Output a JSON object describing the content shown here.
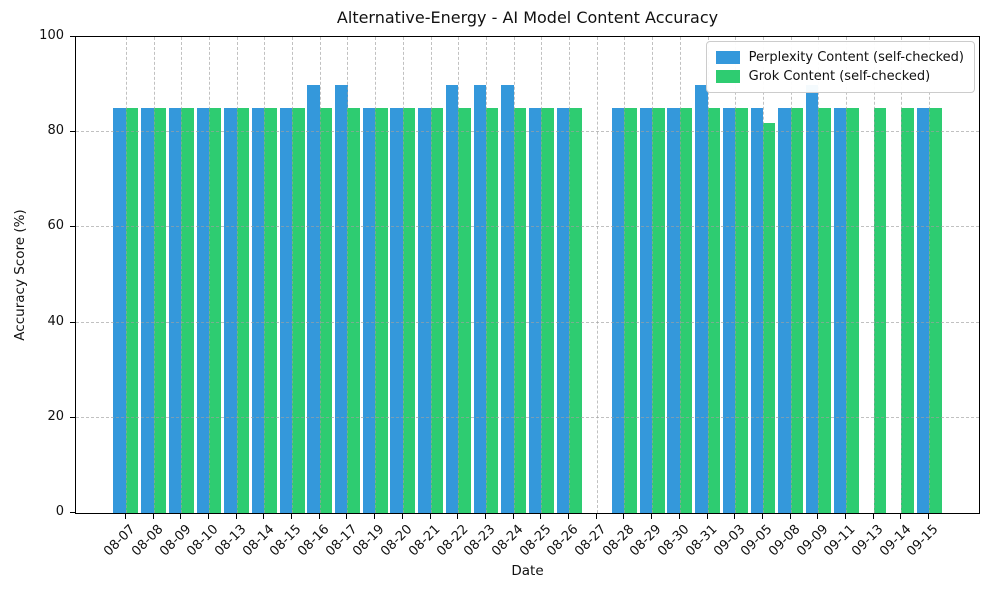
{
  "chart_data": {
    "type": "bar",
    "title": "Alternative-Energy - AI Model Content Accuracy",
    "xlabel": "Date",
    "ylabel": "Accuracy Score (%)",
    "ylim": [
      0,
      100
    ],
    "yticks": [
      0,
      20,
      40,
      60,
      80,
      100
    ],
    "grid": true,
    "grid_style": "dashed",
    "legend_position": "upper right",
    "categories": [
      "08-07",
      "08-08",
      "08-09",
      "08-10",
      "08-13",
      "08-14",
      "08-15",
      "08-16",
      "08-17",
      "08-19",
      "08-20",
      "08-21",
      "08-22",
      "08-23",
      "08-24",
      "08-25",
      "08-26",
      "08-27",
      "08-28",
      "08-29",
      "08-30",
      "08-31",
      "09-03",
      "09-05",
      "09-08",
      "09-09",
      "09-11",
      "09-13",
      "09-14",
      "09-15"
    ],
    "series": [
      {
        "name": "Perplexity Content (self-checked)",
        "color": "#3498db",
        "values": [
          85,
          85,
          85,
          85,
          85,
          85,
          85,
          90,
          90,
          85,
          85,
          85,
          90,
          90,
          90,
          85,
          85,
          null,
          85,
          85,
          85,
          90,
          85,
          85,
          85,
          90,
          85,
          null,
          null,
          85
        ]
      },
      {
        "name": "Grok Content (self-checked)",
        "color": "#2ecc71",
        "values": [
          85,
          85,
          85,
          85,
          85,
          85,
          85,
          85,
          85,
          85,
          85,
          85,
          85,
          85,
          85,
          85,
          85,
          null,
          85,
          85,
          85,
          85,
          85,
          82,
          85,
          85,
          85,
          85,
          85,
          85
        ]
      }
    ]
  }
}
